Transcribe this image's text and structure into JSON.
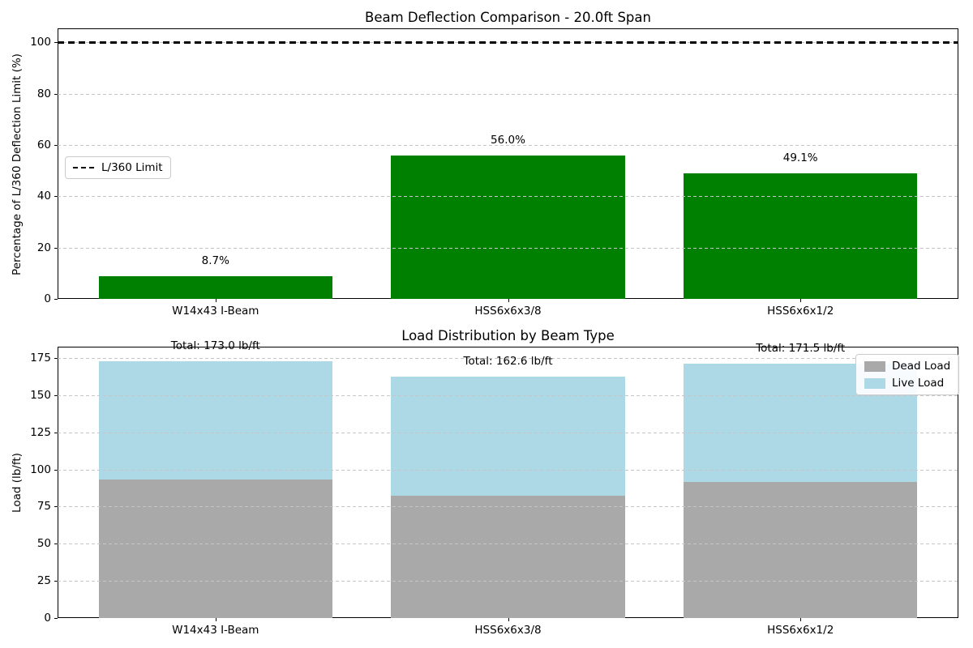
{
  "chart_data": [
    {
      "type": "bar",
      "title": "Beam Deflection Comparison - 20.0ft Span",
      "ylabel": "Percentage of L/360 Deflection Limit (%)",
      "categories": [
        "W14x43 I-Beam",
        "HSS6x6x3/8",
        "HSS6x6x1/2"
      ],
      "values": [
        8.7,
        56.0,
        49.1
      ],
      "bar_labels": [
        "8.7%",
        "56.0%",
        "49.1%"
      ],
      "bar_color": "#008000",
      "yticks": [
        0,
        20,
        40,
        60,
        80,
        100
      ],
      "ylim": [
        0,
        105.5
      ],
      "grid": "horizontal-dashed",
      "legend_position": "center-left",
      "limit_line": {
        "value": 100,
        "label": "L/360 Limit",
        "color": "#000000",
        "style": "dashed"
      }
    },
    {
      "type": "stacked-bar",
      "title": "Load Distribution by Beam Type",
      "ylabel": "Load (lb/ft)",
      "categories": [
        "W14x43 I-Beam",
        "HSS6x6x3/8",
        "HSS6x6x1/2"
      ],
      "series": [
        {
          "name": "Dead Load",
          "color": "#a9a9a9",
          "values": [
            93.0,
            82.6,
            91.5
          ]
        },
        {
          "name": "Live Load",
          "color": "#add8e6",
          "values": [
            80.0,
            80.0,
            80.0
          ]
        }
      ],
      "totals": [
        173.0,
        162.6,
        171.5
      ],
      "total_labels": [
        "Total: 173.0 lb/ft",
        "Total: 162.6 lb/ft",
        "Total: 171.5 lb/ft"
      ],
      "yticks": [
        0,
        25,
        50,
        75,
        100,
        125,
        150,
        175
      ],
      "ylim": [
        0,
        182.7
      ],
      "grid": "horizontal-dashed",
      "legend_position": "upper-right"
    }
  ]
}
